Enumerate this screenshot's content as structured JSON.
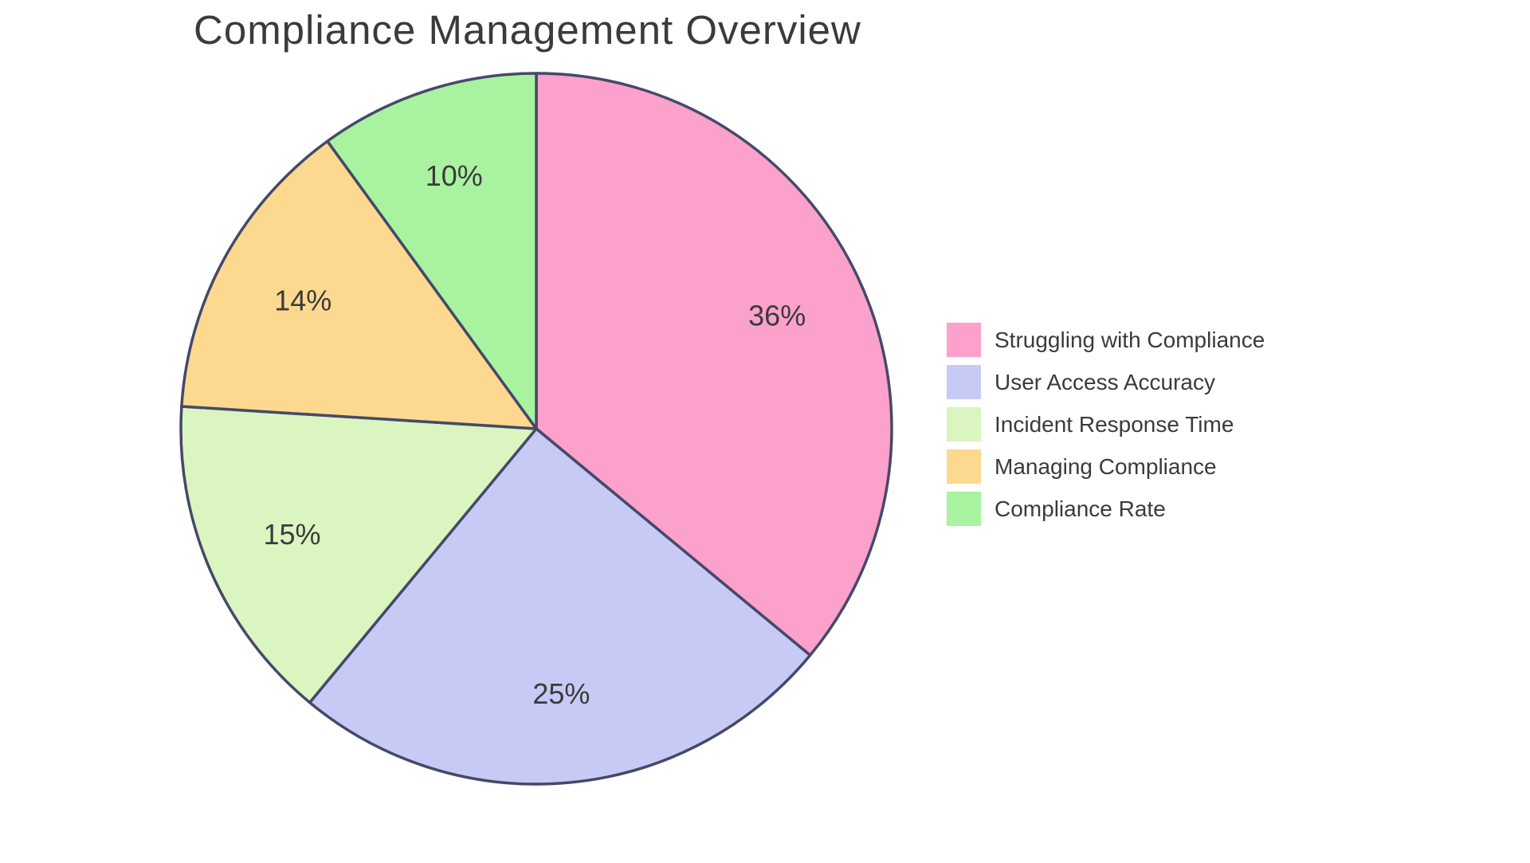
{
  "chart_data": {
    "type": "pie",
    "title": "Compliance Management Overview",
    "direction": "clockwise",
    "start_angle_deg": 0,
    "legend_position": "right",
    "grid": false,
    "outline_color": "#454969",
    "text_color": "#3b3b3b",
    "background_color": "#ffffff",
    "categories": [
      "Struggling with Compliance",
      "User Access Accuracy",
      "Incident Response Time",
      "Managing Compliance",
      "Compliance Rate"
    ],
    "values": [
      36,
      25,
      15,
      14,
      10
    ],
    "slices": [
      {
        "label": "Struggling with Compliance",
        "value": 36,
        "display": "36%",
        "color": "#FBA1CB"
      },
      {
        "label": "User Access Accuracy",
        "value": 25,
        "display": "25%",
        "color": "#C8CAF6"
      },
      {
        "label": "Incident Response Time",
        "value": 15,
        "display": "15%",
        "color": "#DAF5C0"
      },
      {
        "label": "Managing Compliance",
        "value": 14,
        "display": "14%",
        "color": "#FCD98F"
      },
      {
        "label": "Compliance Rate",
        "value": 10,
        "display": "10%",
        "color": "#A9F2A0"
      }
    ]
  }
}
